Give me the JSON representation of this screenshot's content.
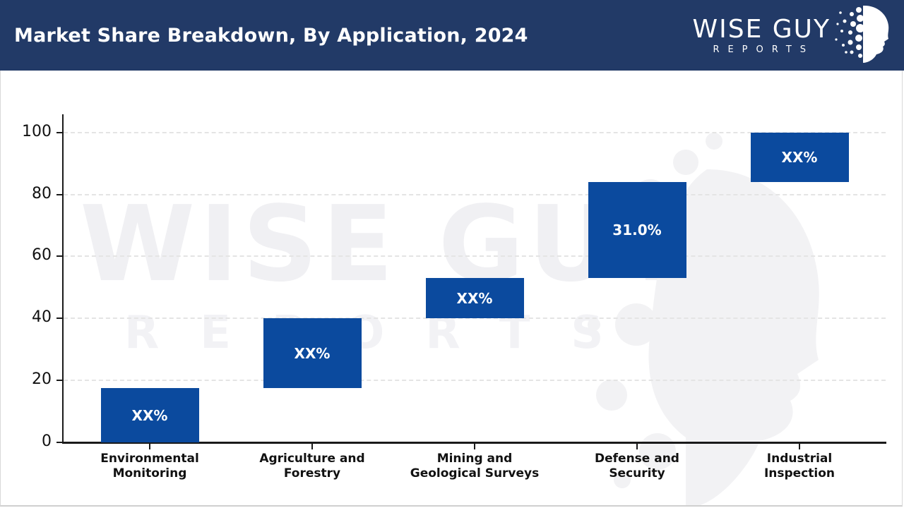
{
  "header": {
    "title": "Market Share Breakdown, By Application, 2024",
    "bg_color": "#223A67",
    "logo": {
      "line1": "WISE GUY",
      "line2": "REPORTS"
    }
  },
  "watermark": {
    "line1": "WISE GUY",
    "line2": "REPORTS"
  },
  "chart_data": {
    "type": "bar",
    "subtype": "waterfall",
    "title": "Market Share Breakdown, By Application, 2024",
    "bar_color": "#0B4A9E",
    "grid": "horizontal-dashed",
    "legend": "none",
    "ylim": [
      0,
      105
    ],
    "y_ticks": [
      0,
      20,
      40,
      60,
      80,
      100
    ],
    "categories": [
      "Environmental Monitoring",
      "Agriculture and Forestry",
      "Mining and Geological Surveys",
      "Defense and Security",
      "Industrial Inspection"
    ],
    "segments": [
      {
        "name": "Environmental Monitoring",
        "lines": [
          "Environmental",
          "Monitoring"
        ],
        "label": "XX%",
        "start": 0,
        "end": 17.5
      },
      {
        "name": "Agriculture and Forestry",
        "lines": [
          "Agriculture and",
          "Forestry"
        ],
        "label": "XX%",
        "start": 17.5,
        "end": 40
      },
      {
        "name": "Mining and Geological Surveys",
        "lines": [
          "Mining and",
          "Geological Surveys"
        ],
        "label": "XX%",
        "start": 40,
        "end": 53
      },
      {
        "name": "Defense and Security",
        "lines": [
          "Defense and",
          "Security"
        ],
        "label": "31.0%",
        "start": 53,
        "end": 84
      },
      {
        "name": "Industrial Inspection",
        "lines": [
          "Industrial",
          "Inspection"
        ],
        "label": "XX%",
        "start": 84,
        "end": 100
      }
    ]
  }
}
